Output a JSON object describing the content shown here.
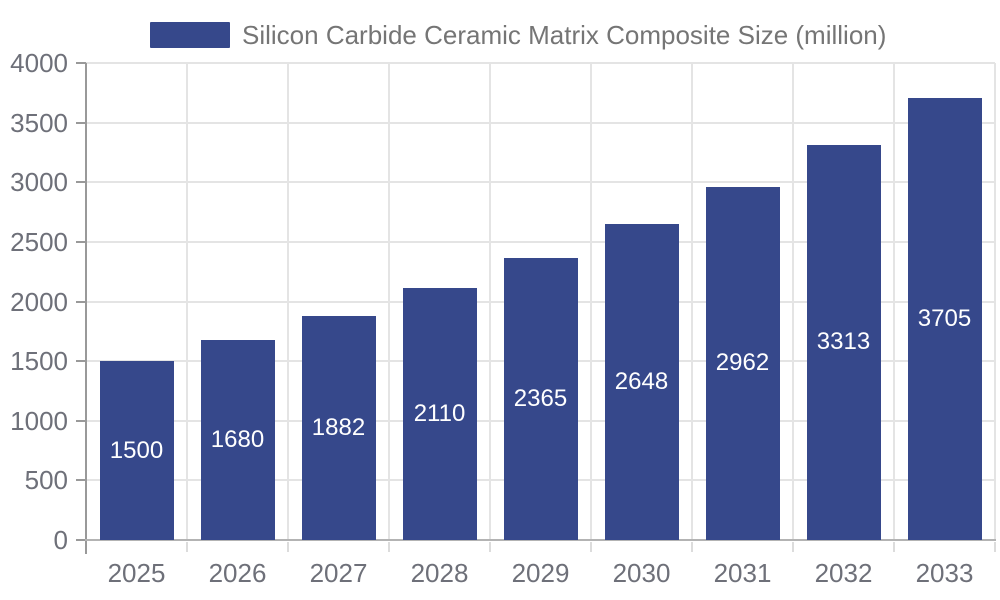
{
  "legend": {
    "label": "Silicon Carbide Ceramic Matrix Composite Size (million)"
  },
  "colors": {
    "bar": "#36488B",
    "y_axis_line": "#999999",
    "x_axis_line": "#b3b3b3",
    "grid_line": "#e4e4e4",
    "minor_tick": "#dcdcdc",
    "tick_text": "#6e7079",
    "legend_text": "#757575",
    "bar_label_text": "#ffffff"
  },
  "chart_data": {
    "type": "bar",
    "title": "Silicon Carbide Ceramic Matrix Composite Size (million)",
    "categories": [
      "2025",
      "2026",
      "2027",
      "2028",
      "2029",
      "2030",
      "2031",
      "2032",
      "2033"
    ],
    "series": [
      {
        "name": "Silicon Carbide Ceramic Matrix Composite Size (million)",
        "values": [
          1500,
          1680,
          1882,
          2110,
          2365,
          2648,
          2962,
          3313,
          3705
        ]
      }
    ],
    "xlabel": "",
    "ylabel": "",
    "ylim": [
      0,
      4000
    ],
    "ytick_step": 500,
    "grid": true,
    "legend_position": "top",
    "value_labels": "inside-center"
  }
}
